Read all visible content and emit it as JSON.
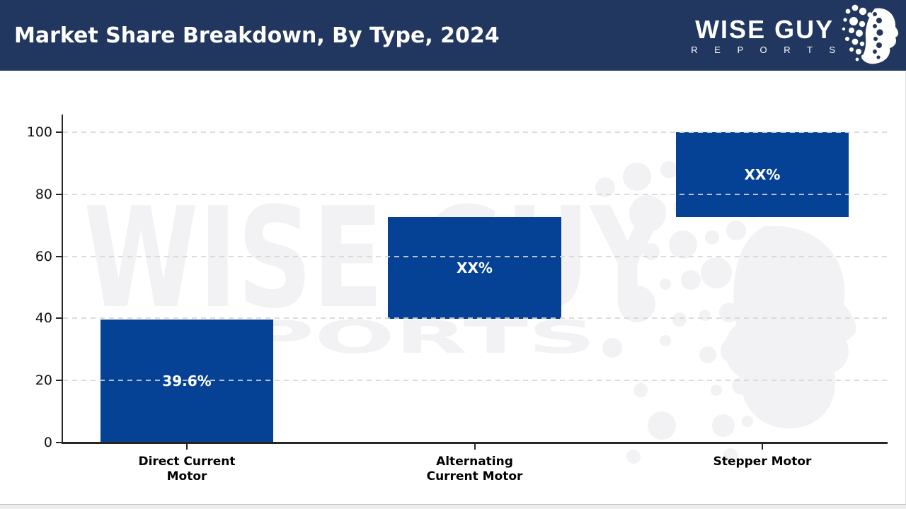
{
  "header": {
    "title": "Market Share Breakdown, By Type, 2024",
    "logo": {
      "line1": "WISE GUY",
      "line2": "R E P O R T S"
    }
  },
  "watermark": {
    "line1": "WISE GUY",
    "line2": "REPORTS"
  },
  "colors": {
    "header_bg": "#213760",
    "bar_fill": "#054195",
    "grid": "#d6d6d6",
    "axis": "#262626",
    "bar_label_text": "#ffffff",
    "watermark_fill": "#f2f2f4"
  },
  "chart_data": {
    "type": "bar",
    "variant": "waterfall",
    "title": "Market Share Breakdown, By Type, 2024",
    "categories": [
      [
        "Direct Current",
        "Motor"
      ],
      [
        "Alternating",
        "Current Motor"
      ],
      [
        "Stepper Motor"
      ]
    ],
    "bars": [
      {
        "base": 0,
        "top": 39.6,
        "label": "39.6%"
      },
      {
        "base": 39.9,
        "top": 72.6,
        "label": "XX%"
      },
      {
        "base": 72.6,
        "top": 100,
        "label": "XX%"
      }
    ],
    "ylim": [
      0,
      100
    ],
    "yticks": [
      0,
      20,
      40,
      60,
      80,
      100
    ],
    "ytick_labels": [
      "0",
      "20",
      "40",
      "60",
      "80",
      "100"
    ],
    "xlabel": "",
    "ylabel": "",
    "grid": "dashed-horizontal",
    "legend": "none"
  }
}
